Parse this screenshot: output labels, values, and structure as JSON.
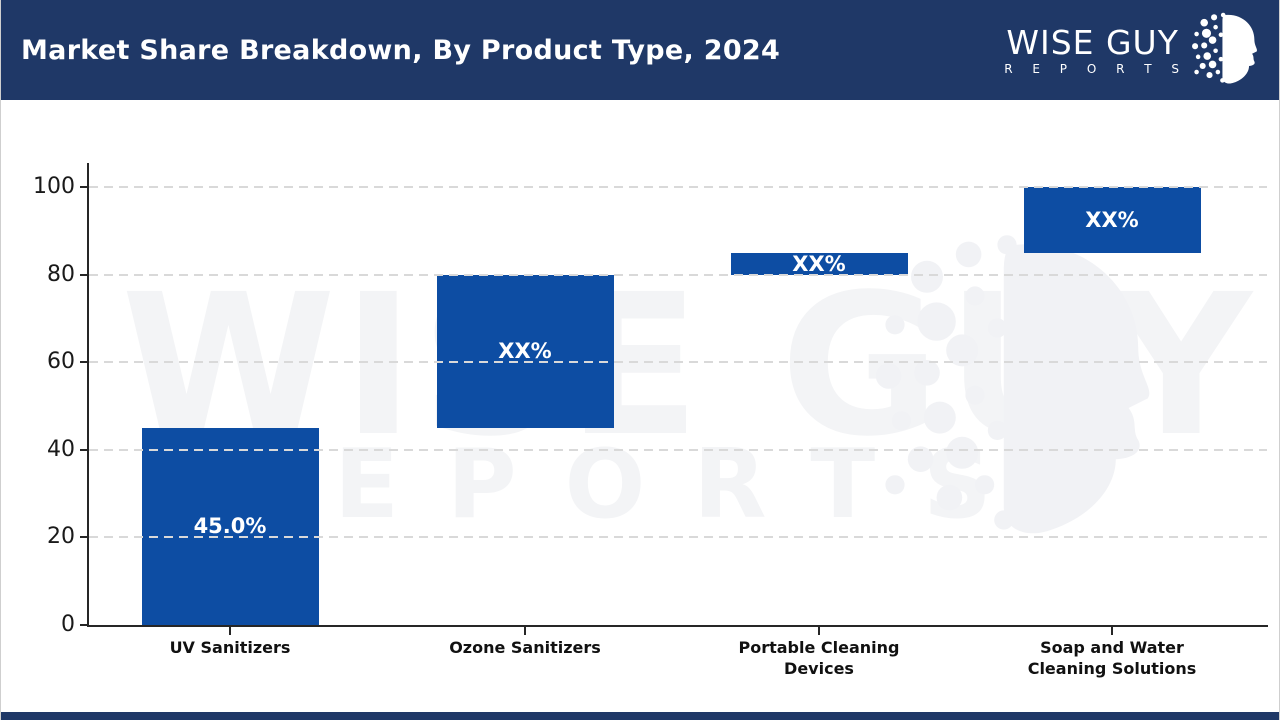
{
  "header": {
    "title": "Market Share Breakdown, By Product Type, 2024",
    "logo": {
      "line1": "WISE GUY",
      "line2": "R E P O R T S"
    }
  },
  "watermark": {
    "line1": "WISE GUY",
    "line2": "REPORTS"
  },
  "colors": {
    "header_bg": "#1f3867",
    "bar": "#0d4da3",
    "gridline": "#d9d9d9",
    "axis": "#262626",
    "watermark": "#f3f4f6",
    "bar_label_text": "#ffffff"
  },
  "chart_data": {
    "type": "bar",
    "subtype": "waterfall",
    "title": "Market Share Breakdown, By Product Type, 2024",
    "categories": [
      "UV Sanitizers",
      "Ozone Sanitizers",
      "Portable Cleaning Devices",
      "Soap and Water Cleaning Solutions"
    ],
    "series": [
      {
        "name": "Market Share",
        "segments": [
          {
            "category": "UV Sanitizers",
            "start": 0,
            "end": 45,
            "label": "45.0%"
          },
          {
            "category": "Ozone Sanitizers",
            "start": 45,
            "end": 80,
            "label": "XX%"
          },
          {
            "category": "Portable Cleaning Devices",
            "start": 80,
            "end": 85,
            "label": "XX%"
          },
          {
            "category": "Soap and Water Cleaning Solutions",
            "start": 85,
            "end": 100,
            "label": "XX%"
          }
        ]
      }
    ],
    "xlabel": "",
    "ylabel": "",
    "ylim": [
      0,
      100
    ],
    "yticks": [
      0,
      20,
      40,
      60,
      80,
      100
    ],
    "grid": "horizontal-dashed-over-bars",
    "legend": "none"
  }
}
